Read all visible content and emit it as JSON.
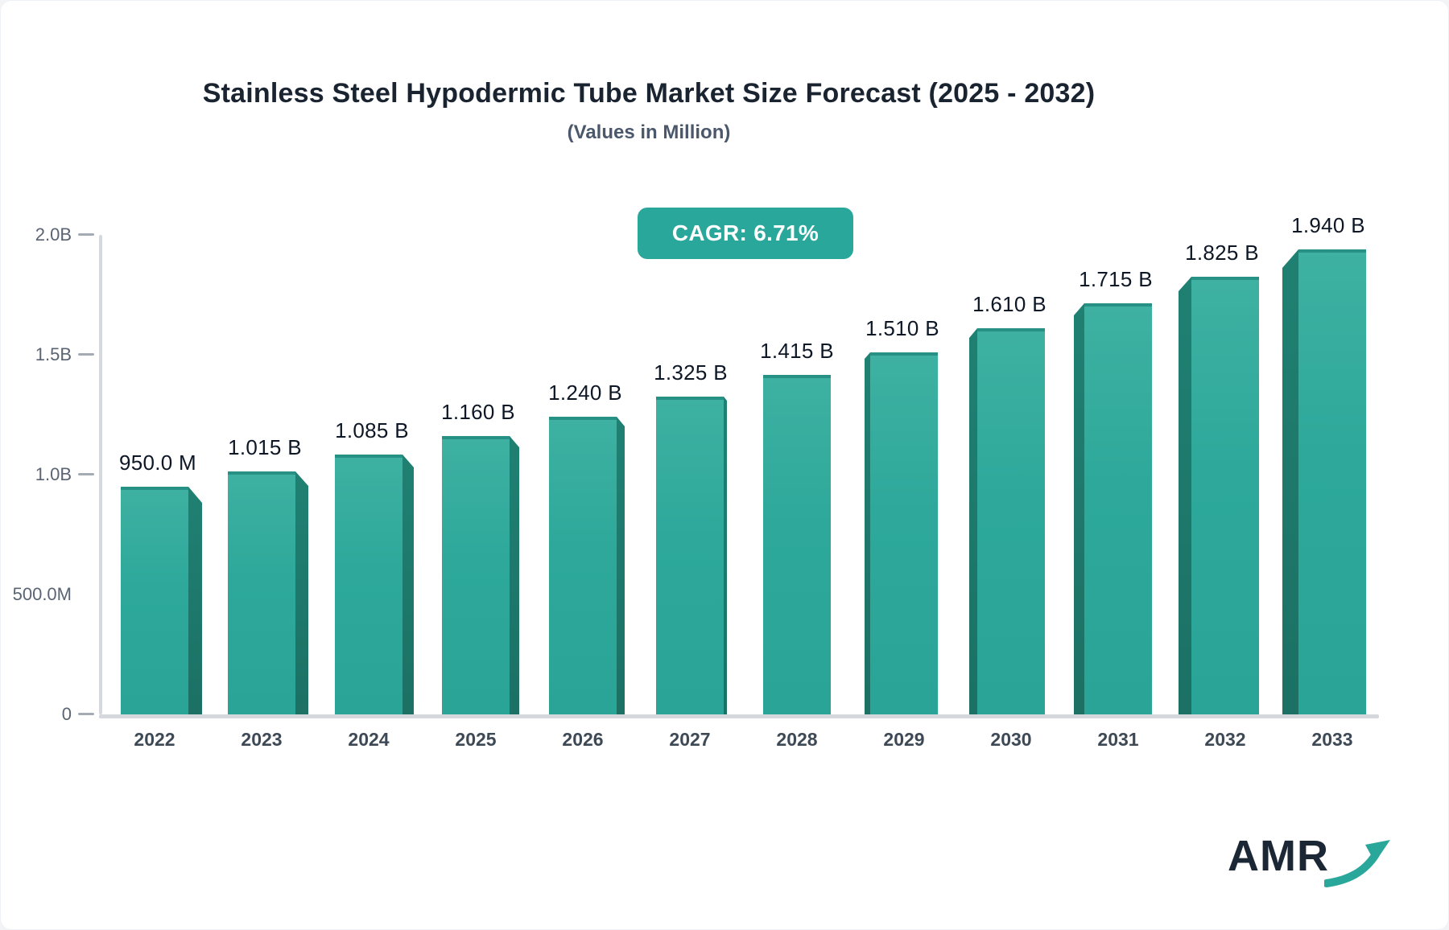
{
  "header": {
    "title": "Stainless Steel Hypodermic Tube Market Size Forecast (2025 - 2032)",
    "subtitle": "(Values in Million)"
  },
  "badge": {
    "label": "CAGR: 6.71%"
  },
  "chart_data": {
    "type": "bar",
    "title": "Stainless Steel Hypodermic Tube Market Size Forecast (2025 - 2032)",
    "subtitle": "(Values in Million)",
    "cagr_annotation": "CAGR: 6.71%",
    "categories": [
      "2022",
      "2023",
      "2024",
      "2025",
      "2026",
      "2027",
      "2028",
      "2029",
      "2030",
      "2031",
      "2032",
      "2033"
    ],
    "values": [
      0.95,
      1.015,
      1.085,
      1.16,
      1.24,
      1.325,
      1.415,
      1.51,
      1.61,
      1.715,
      1.825,
      1.94
    ],
    "value_labels": [
      "950.0 M",
      "1.015 B",
      "1.085 B",
      "1.160 B",
      "1.240 B",
      "1.325 B",
      "1.415 B",
      "1.510 B",
      "1.610 B",
      "1.715 B",
      "1.825 B",
      "1.940 B"
    ],
    "yticks": [
      {
        "label": "2.0B",
        "value": 2.0,
        "dash": true
      },
      {
        "label": "1.5B",
        "value": 1.5,
        "dash": true
      },
      {
        "label": "1.0B",
        "value": 1.0,
        "dash": true
      },
      {
        "label": "500.0M",
        "value": 0.5,
        "dash": false
      },
      {
        "label": "0",
        "value": 0.0,
        "dash": true
      }
    ],
    "ylim": [
      0,
      2.0
    ],
    "grid": false,
    "legend": "none",
    "colors": {
      "bar_face": "#2faa9b",
      "bar_face_light": "#3eb1a2",
      "bar_side": "#1f8173",
      "bar_top_edge": "#279185",
      "badge_background": "#2aa79b",
      "axis_line": "#d5d8dd",
      "tick_text": "#5a6472",
      "category_text": "#3e4956",
      "value_text": "#0e1726",
      "title_text": "#1a2431"
    }
  },
  "logo": {
    "text": "AMR",
    "arrow_icon": "growth-arrow-icon",
    "text_color": "#1c2736",
    "arrow_color": "#2aa79b"
  }
}
